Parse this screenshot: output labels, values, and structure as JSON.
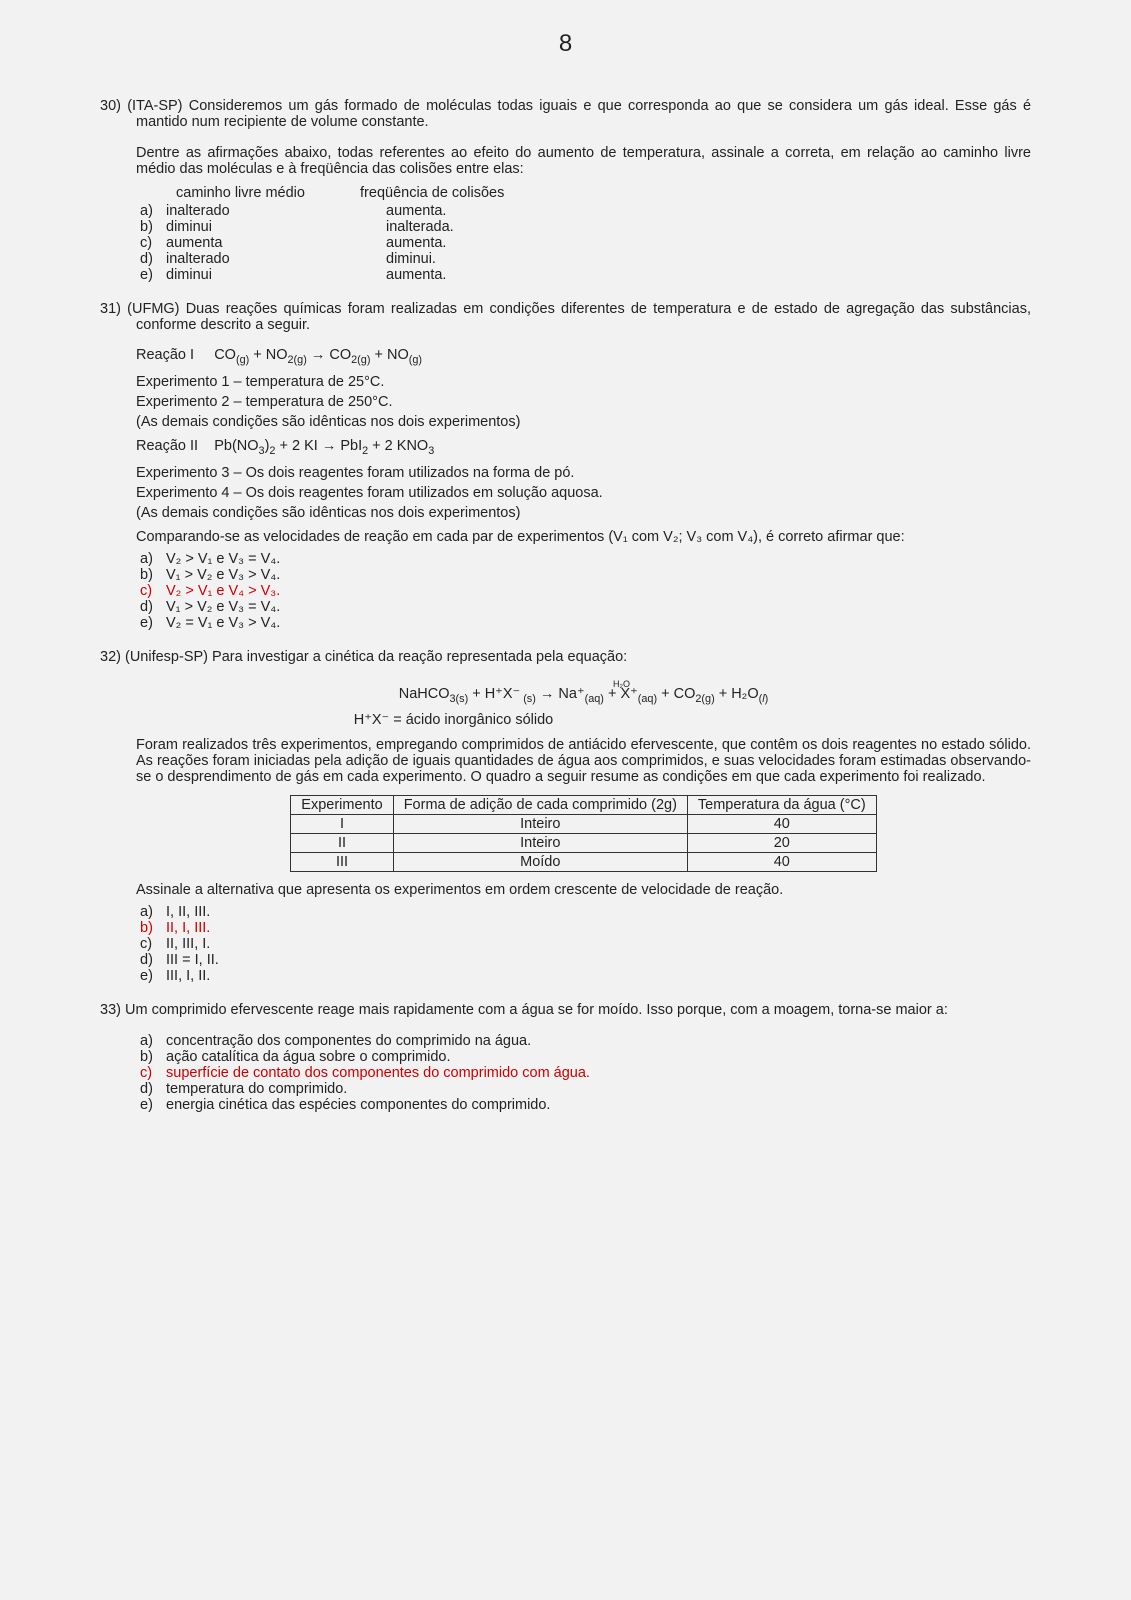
{
  "page_number": "8",
  "q30": {
    "number": "30)",
    "source": "(ITA-SP)",
    "text": "Consideremos um gás formado de moléculas todas iguais e que corresponda ao que se considera um gás ideal. Esse gás é mantido num recipiente de volume constante.",
    "text2": "Dentre as afirmações abaixo, todas referentes ao efeito do aumento de temperatura, assinale a correta, em relação ao caminho livre médio das moléculas e à freqüência das colisões entre elas:",
    "col1_head": "caminho livre médio",
    "col2_head": "freqüência de colisões",
    "opts": [
      {
        "lbl": "a)",
        "c1": "inalterado",
        "c2": "aumenta."
      },
      {
        "lbl": "b)",
        "c1": "diminui",
        "c2": "inalterada."
      },
      {
        "lbl": "c)",
        "c1": "aumenta",
        "c2": "aumenta."
      },
      {
        "lbl": "d)",
        "c1": "inalterado",
        "c2": "diminui."
      },
      {
        "lbl": "e)",
        "c1": "diminui",
        "c2": "aumenta."
      }
    ]
  },
  "q31": {
    "number": "31)",
    "source": "(UFMG)",
    "text": "Duas reações químicas foram realizadas em condições diferentes de temperatura e de estado de agregação das substâncias, conforme descrito a seguir.",
    "reacao1_label": "Reação I",
    "reacao1_eq_pre": "CO",
    "reacao1_eq": " + NO",
    "reacao1_eq2": " → CO",
    "reacao1_eq3": " + NO",
    "exp1": "Experimento 1 – temperatura de 25°C.",
    "exp2": "Experimento 2 – temperatura de 250°C.",
    "note1": "(As demais condições são idênticas nos dois experimentos)",
    "reacao2_label": "Reação II",
    "reacao2_eq": "Pb(NO",
    "reacao2_eq_b": ")",
    "reacao2_eq2": " + 2 KI → PbI",
    "reacao2_eq3": " + 2 KNO",
    "exp3": "Experimento 3 – Os dois reagentes foram utilizados na forma de pó.",
    "exp4": "Experimento 4 – Os dois reagentes foram utilizados em solução aquosa.",
    "note2": "(As demais condições são idênticas nos dois experimentos)",
    "compare": "Comparando-se as velocidades de reação em cada par de experimentos (V₁ com V₂; V₃ com V₄), é correto afirmar que:",
    "opts": [
      {
        "lbl": "a)",
        "txt": "V₂ > V₁ e V₃ = V₄.",
        "correct": false
      },
      {
        "lbl": "b)",
        "txt": "V₁ > V₂ e V₃ > V₄.",
        "correct": false
      },
      {
        "lbl": "c)",
        "txt": "V₂ > V₁ e V₄ > V₃.",
        "correct": true
      },
      {
        "lbl": "d)",
        "txt": "V₁ > V₂ e V₃ = V₄.",
        "correct": false
      },
      {
        "lbl": "e)",
        "txt": "V₂ = V₁ e V₃ > V₄.",
        "correct": false
      }
    ]
  },
  "q32": {
    "number": "32)",
    "source": "(Unifesp-SP)",
    "text": "Para investigar a cinética da reação representada pela equação:",
    "over_arrow": "H₂O",
    "eq_left": "NaHCO",
    "eq_mid1": " + H⁺X⁻",
    "eq_arrow": " → Na⁺",
    "eq_mid2": " + X⁺",
    "eq_mid3": " + CO",
    "eq_right": " + H₂O",
    "acid_note": "H⁺X⁻  = ácido inorgânico sólido",
    "para": "Foram realizados três experimentos, empregando comprimidos de antiácido efervescente, que contêm os dois reagentes no estado sólido. As reações foram iniciadas pela adição de iguais quantidades de água aos comprimidos, e suas velocidades foram estimadas observando-se o desprendimento de gás em cada experimento. O quadro a seguir resume as condições em que cada experimento foi realizado.",
    "table": {
      "headers": [
        "Experimento",
        "Forma de adição de cada comprimido (2g)",
        "Temperatura da água (°C)"
      ],
      "rows": [
        [
          "I",
          "Inteiro",
          "40"
        ],
        [
          "II",
          "Inteiro",
          "20"
        ],
        [
          "III",
          "Moído",
          "40"
        ]
      ]
    },
    "after_table": "Assinale a alternativa que apresenta os experimentos em ordem crescente de velocidade de reação.",
    "opts": [
      {
        "lbl": "a)",
        "txt": "I, II, III.",
        "correct": false
      },
      {
        "lbl": "b)",
        "txt": "II, I, III.",
        "correct": true
      },
      {
        "lbl": "c)",
        "txt": "II, III, I.",
        "correct": false
      },
      {
        "lbl": "d)",
        "txt": "III = I, II.",
        "correct": false
      },
      {
        "lbl": "e)",
        "txt": "III, I, II.",
        "correct": false
      }
    ]
  },
  "q33": {
    "number": "33)",
    "text": "Um comprimido efervescente reage mais rapidamente com a água se for moído. Isso porque, com a moagem, torna-se maior a:",
    "opts": [
      {
        "lbl": "a)",
        "txt": "concentração dos componentes do comprimido na água.",
        "correct": false
      },
      {
        "lbl": "b)",
        "txt": "ação catalítica da água sobre o comprimido.",
        "correct": false
      },
      {
        "lbl": "c)",
        "txt": "superfície de contato dos componentes do comprimido com água.",
        "correct": true
      },
      {
        "lbl": "d)",
        "txt": "temperatura do comprimido.",
        "correct": false
      },
      {
        "lbl": "e)",
        "txt": "energia cinética das espécies componentes do comprimido.",
        "correct": false
      }
    ]
  }
}
